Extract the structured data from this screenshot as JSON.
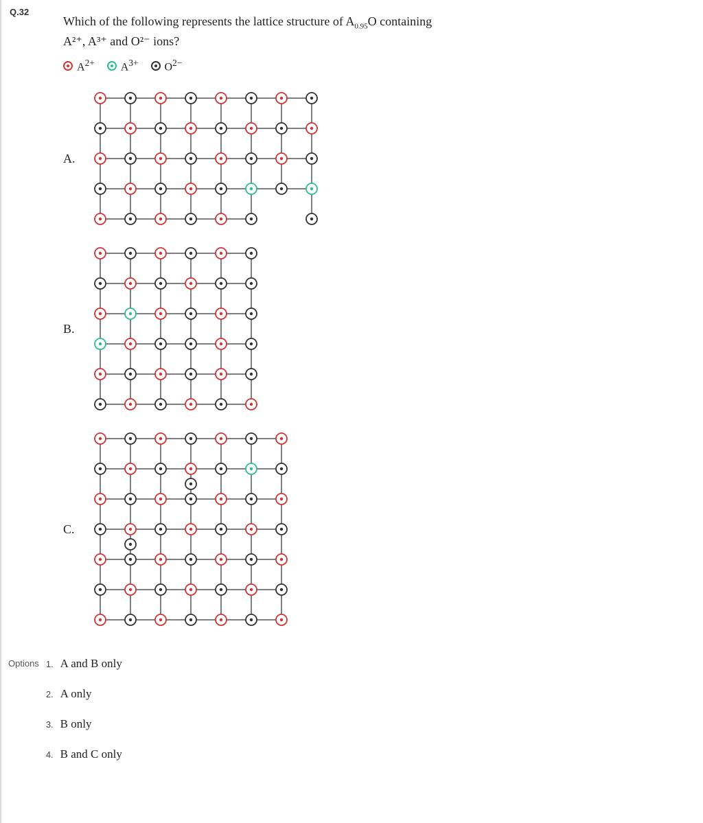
{
  "question_number": "Q.32",
  "question": {
    "line1_pre": "Which of the following represents the lattice structure of A",
    "sub1": "0.95",
    "line1_mid": "O containing",
    "line2": "A²⁺, A³⁺ and O²⁻ ions?"
  },
  "legend": {
    "items": [
      {
        "color": "red",
        "label_base": "A",
        "label_sup": "2+"
      },
      {
        "color": "green",
        "label_base": "A",
        "label_sup": "3+"
      },
      {
        "color": "black",
        "label_base": "O",
        "label_sup": "2−"
      }
    ]
  },
  "colors": {
    "red": "#d33333",
    "green": "#2bbf8a",
    "black": "#333333",
    "grid": "#555555",
    "bg": "#ffffff"
  },
  "lattices": {
    "spacing": 44,
    "node_r_outer": 8,
    "node_r_inner": 2.2,
    "stroke_width": 1.5,
    "outer_stroke": 1.8,
    "A": {
      "label": "A.",
      "cols": 8,
      "rows": 5,
      "vacancies": [
        [
          4,
          6
        ]
      ],
      "colors": [
        [
          "red",
          "black",
          "red",
          "black",
          "red",
          "black",
          "red",
          "black"
        ],
        [
          "black",
          "red",
          "black",
          "red",
          "black",
          "red",
          "black",
          "red"
        ],
        [
          "red",
          "black",
          "red",
          "black",
          "red",
          "black",
          "red",
          "black"
        ],
        [
          "black",
          "red",
          "black",
          "red",
          "black",
          "green",
          "black",
          "green"
        ],
        [
          "red",
          "black",
          "red",
          "black",
          "red",
          "black",
          "red",
          "black"
        ]
      ]
    },
    "B": {
      "label": "B.",
      "cols": 6,
      "rows": 6,
      "vacancies": [],
      "colors": [
        [
          "red",
          "black",
          "red",
          "black",
          "red",
          "black"
        ],
        [
          "black",
          "red",
          "black",
          "red",
          "black",
          "black"
        ],
        [
          "red",
          "green",
          "red",
          "black",
          "red",
          "black"
        ],
        [
          "green",
          "red",
          "black",
          "black",
          "red",
          "black"
        ],
        [
          "red",
          "black",
          "red",
          "black",
          "red",
          "black"
        ],
        [
          "black",
          "red",
          "black",
          "red",
          "black",
          "red"
        ]
      ]
    },
    "C": {
      "label": "C.",
      "cols": 7,
      "rows": 7,
      "extra_points": [
        {
          "row": 1.5,
          "col": 3,
          "color": "black"
        },
        {
          "row": 3.5,
          "col": 1,
          "color": "black"
        }
      ],
      "vacancies": [],
      "colors": [
        [
          "red",
          "black",
          "red",
          "black",
          "red",
          "black",
          "red"
        ],
        [
          "black",
          "red",
          "black",
          "red",
          "black",
          "green",
          "black"
        ],
        [
          "red",
          "black",
          "red",
          "black",
          "red",
          "black",
          "red"
        ],
        [
          "black",
          "red",
          "black",
          "red",
          "black",
          "red",
          "black"
        ],
        [
          "red",
          "black",
          "red",
          "black",
          "red",
          "black",
          "red"
        ],
        [
          "black",
          "red",
          "black",
          "red",
          "black",
          "red",
          "black"
        ],
        [
          "red",
          "black",
          "red",
          "black",
          "red",
          "black",
          "red"
        ]
      ]
    }
  },
  "options_label": "Options",
  "options": [
    {
      "num": "1.",
      "text": "A and B only"
    },
    {
      "num": "2.",
      "text": "A only"
    },
    {
      "num": "3.",
      "text": "B only"
    },
    {
      "num": "4.",
      "text": "B and C only"
    }
  ]
}
